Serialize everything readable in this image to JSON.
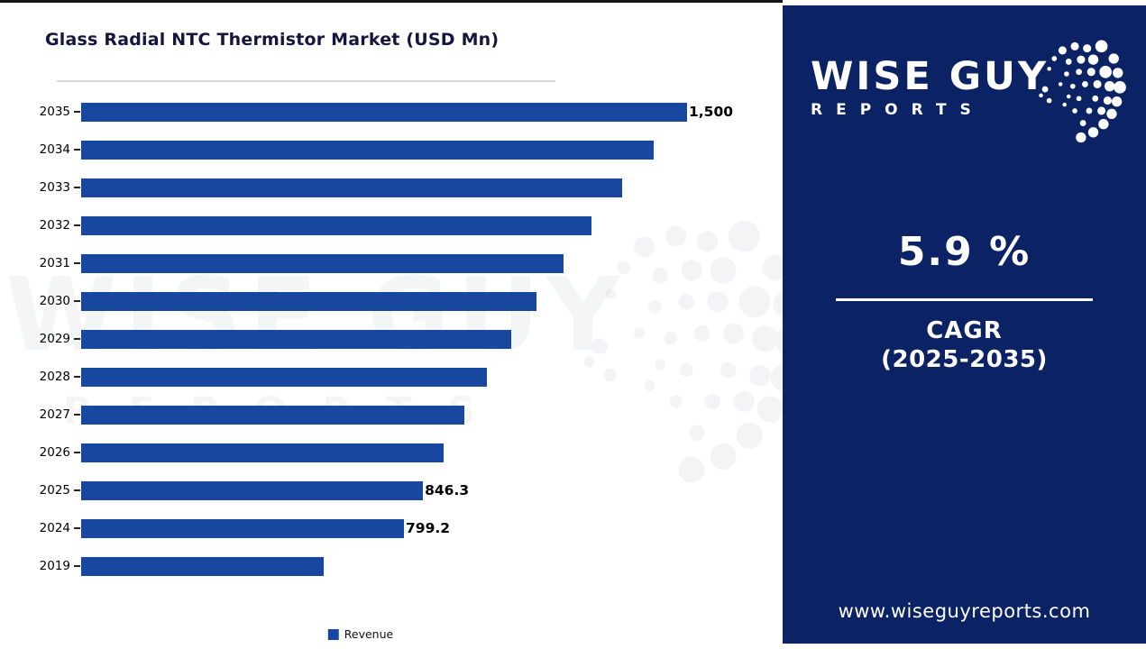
{
  "chart": {
    "title": "Glass Radial NTC Thermistor Market (USD Mn)",
    "legend_label": "Revenue"
  },
  "chart_data": {
    "type": "bar",
    "orientation": "horizontal",
    "title": "Glass Radial NTC Thermistor Market (USD Mn)",
    "series_name": "Revenue",
    "categories": [
      "2035",
      "2034",
      "2033",
      "2032",
      "2031",
      "2030",
      "2029",
      "2028",
      "2027",
      "2026",
      "2025",
      "2024",
      "2019"
    ],
    "values": [
      1500,
      1417.7,
      1338.7,
      1264.1,
      1193.7,
      1127.2,
      1064.4,
      1005.1,
      949.1,
      896.2,
      846.3,
      799.2,
      600
    ],
    "data_labels": [
      "1,500",
      "",
      "",
      "",
      "",
      "",
      "",
      "",
      "",
      "",
      "846.3",
      "799.2",
      ""
    ],
    "xlim": [
      0,
      1500
    ],
    "bar_color": "#17479e",
    "grid": false,
    "legend_position": "bottom-center"
  },
  "brand": {
    "line1": "WISE GUY",
    "line2": "REPORTS"
  },
  "panel": {
    "background_color": "#0b2265",
    "cagr_value": "5.9 %",
    "cagr_label": "CAGR",
    "cagr_period": "(2025-2035)",
    "website": "www.wiseguyreports.com"
  },
  "watermark": {
    "line1": "WISE GUY",
    "line2": "REPORTS"
  }
}
